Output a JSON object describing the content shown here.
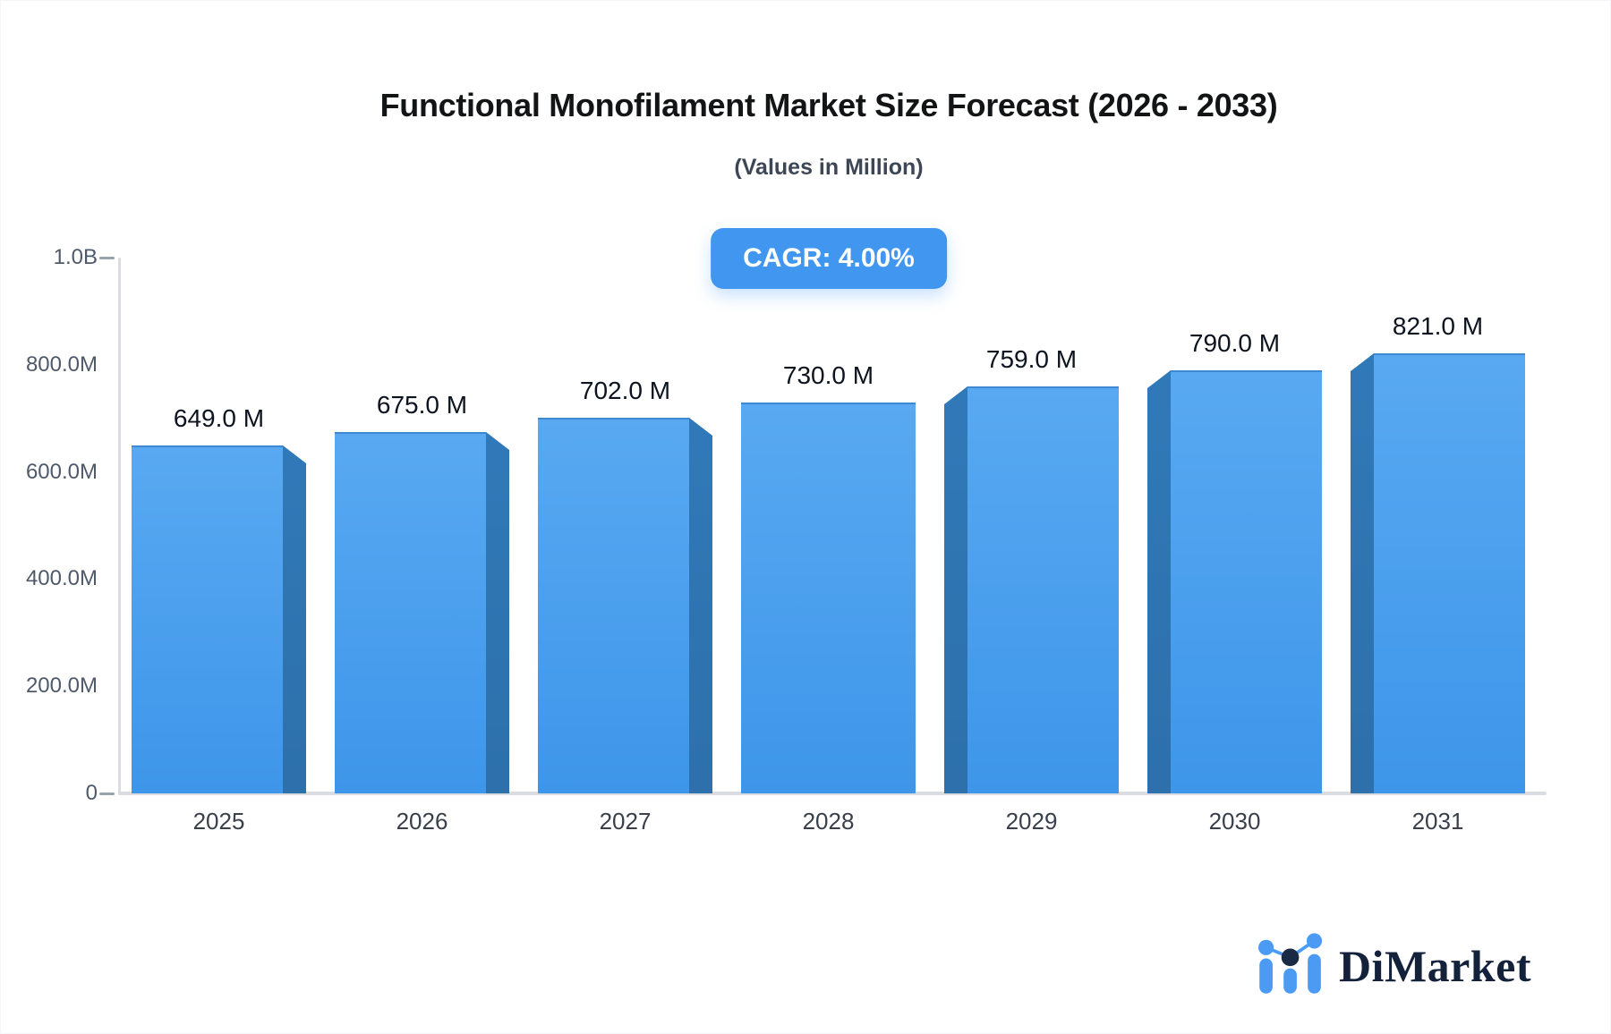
{
  "header": {
    "title": "Functional Monofilament Market Size Forecast (2026 - 2033)",
    "subtitle": "(Values in Million)"
  },
  "badge": {
    "label": "CAGR: 4.00%",
    "bg_color": "#4196f0",
    "text_color": "#ffffff"
  },
  "chart_data": {
    "type": "bar",
    "title": "Functional Monofilament Market Size Forecast (2026 - 2033)",
    "subtitle": "(Values in Million)",
    "categories": [
      "2025",
      "2026",
      "2027",
      "2028",
      "2029",
      "2030",
      "2031"
    ],
    "values": [
      649.0,
      675.0,
      702.0,
      730.0,
      759.0,
      790.0,
      821.0
    ],
    "value_labels": [
      "649.0 M",
      "675.0 M",
      "702.0 M",
      "730.0 M",
      "759.0 M",
      "790.0 M",
      "821.0 M"
    ],
    "xlabel": "",
    "ylabel": "",
    "ylim": [
      0,
      1000
    ],
    "y_ticks": [
      {
        "value": 1000,
        "label": "1.0B"
      },
      {
        "value": 800,
        "label": "800.0M"
      },
      {
        "value": 600,
        "label": "600.0M"
      },
      {
        "value": 400,
        "label": "400.0M"
      },
      {
        "value": 200,
        "label": "200.0M"
      },
      {
        "value": 0,
        "label": "0"
      }
    ],
    "grid": false,
    "legend": "none",
    "bar_face_top_color": "#58a9f1",
    "bar_face_bottom_color": "#3e96ea",
    "bar_side_color": "#2e74b2"
  },
  "logo": {
    "text": "DiMarket",
    "icon": "mini-bar-chart-icon",
    "icon_color": "#4b9bf5",
    "text_color": "#14213b"
  }
}
